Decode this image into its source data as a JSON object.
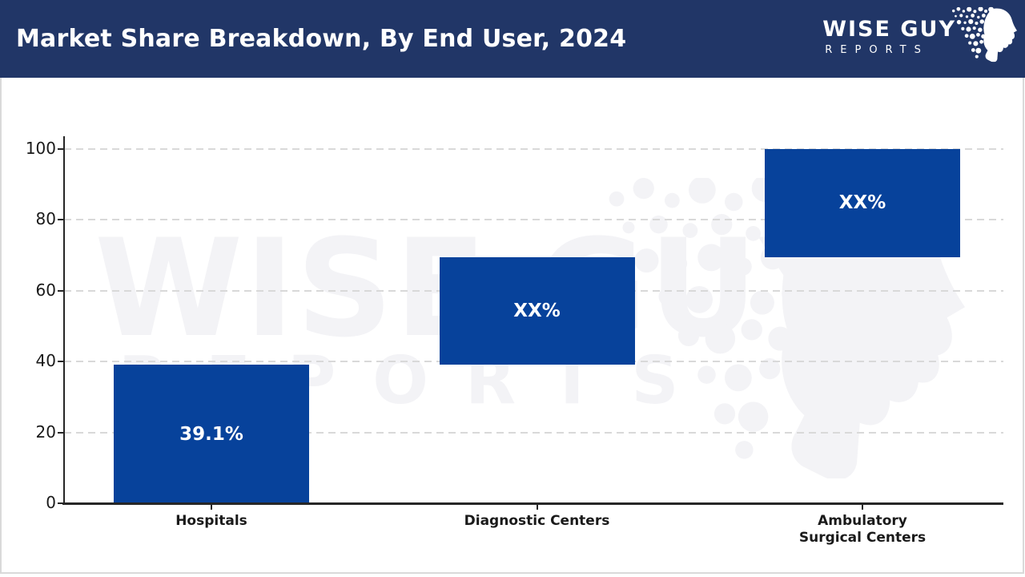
{
  "header": {
    "title": "Market Share Breakdown, By End User, 2024"
  },
  "logo": {
    "name": "WISE GUY",
    "subtitle": "REPORTS"
  },
  "watermark": {
    "line1": "WISE GUY",
    "line2": "REPORTS"
  },
  "colors": {
    "header_bg": "#213667",
    "bar": "#07429B",
    "axis": "#262626",
    "grid": "#D9D9D9",
    "watermark": "#F3F3F6",
    "text": "#1A1A1A",
    "bar_label": "#FFFFFF"
  },
  "chart_data": {
    "type": "bar",
    "variant": "floating-stacked-segments",
    "title": "Market Share Breakdown, By End User, 2024",
    "xlabel": "",
    "ylabel": "",
    "ylim": [
      0,
      100
    ],
    "y_ticks": [
      0,
      20,
      40,
      60,
      80,
      100
    ],
    "grid": "horizontal dashed",
    "legend": "none",
    "categories": [
      "Hospitals",
      "Diagnostic Centers",
      "Ambulatory\nSurgical Centers"
    ],
    "segments": [
      {
        "category": "Hospitals",
        "start": 0,
        "end": 39.1,
        "label": "39.1%"
      },
      {
        "category": "Diagnostic Centers",
        "start": 39.1,
        "end": 69.5,
        "label": "XX%"
      },
      {
        "category": "Ambulatory Surgical Centers",
        "start": 69.5,
        "end": 100,
        "label": "XX%"
      }
    ]
  }
}
